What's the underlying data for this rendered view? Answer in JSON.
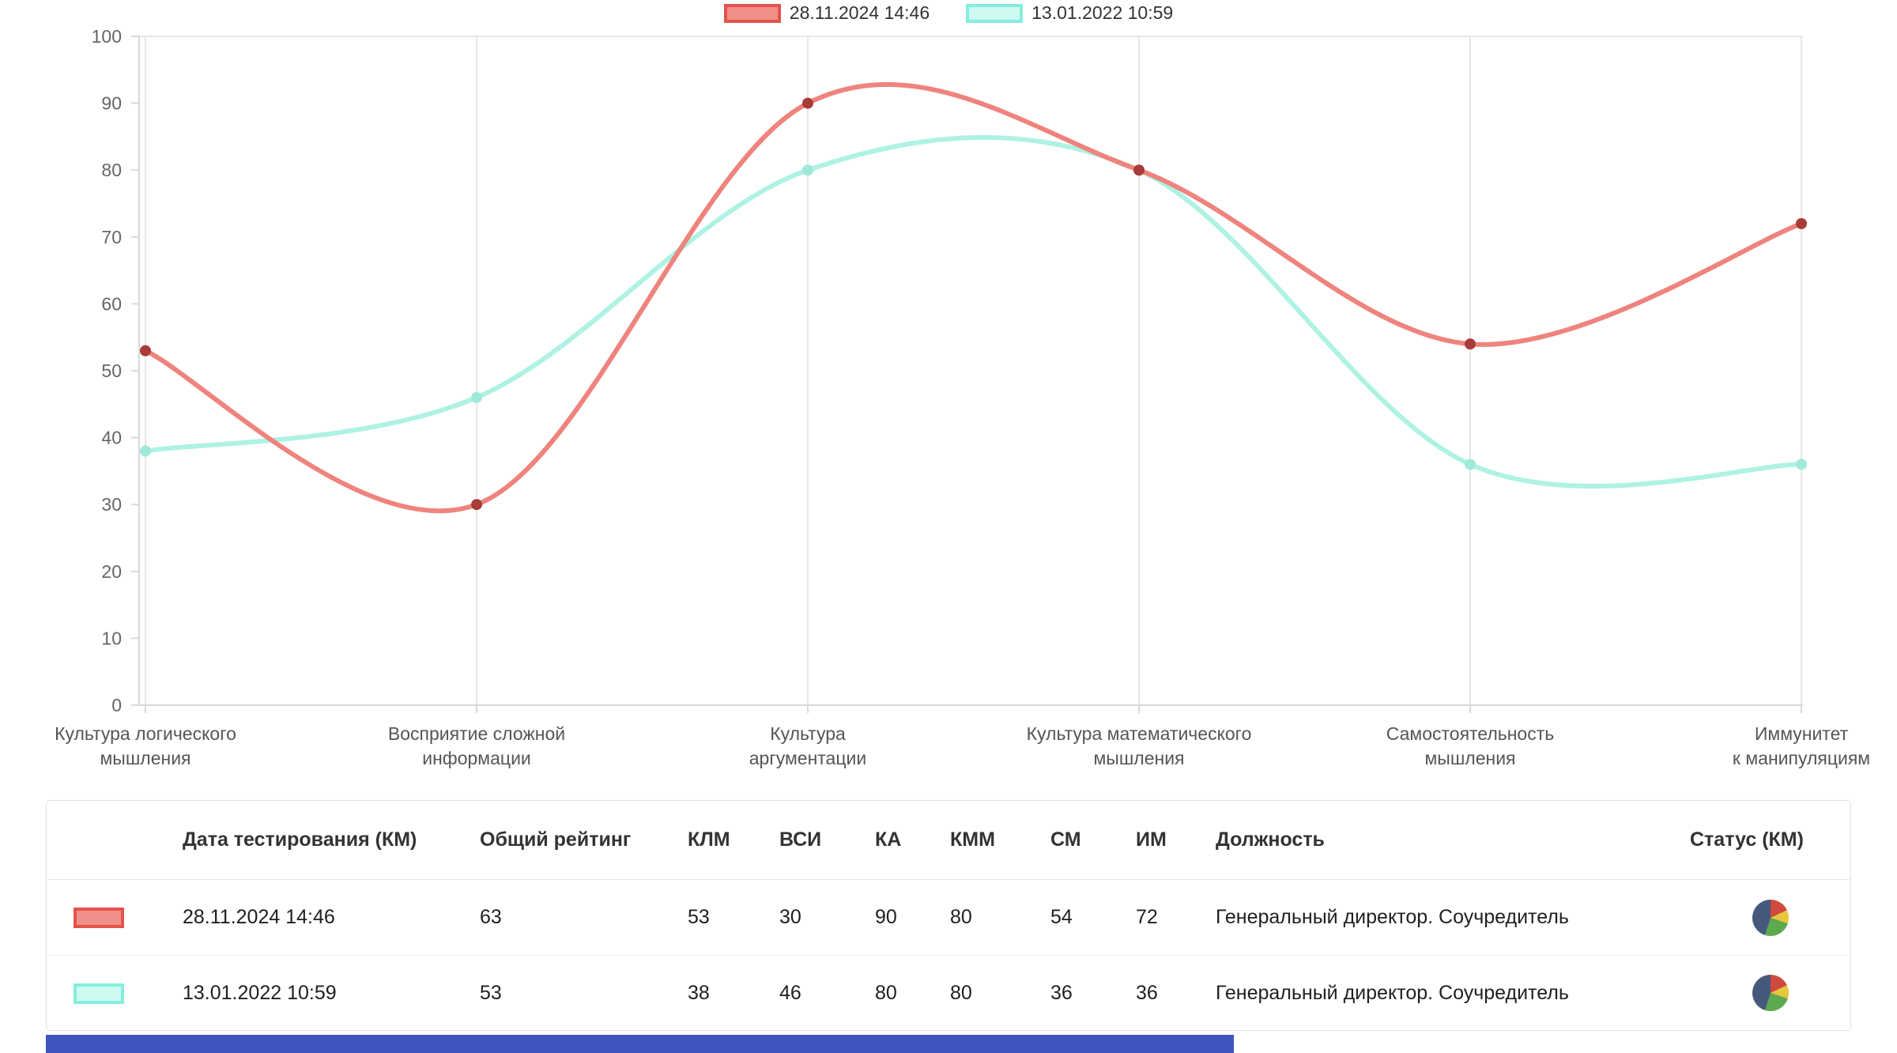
{
  "legend": {
    "items": [
      {
        "label": "28.11.2024 14:46",
        "fill": "#f19088",
        "border": "#e4534b"
      },
      {
        "label": "13.01.2022 10:59",
        "fill": "#cdfaf1",
        "border": "#85eede"
      }
    ]
  },
  "chart_data": {
    "type": "line",
    "title": "",
    "categories": [
      [
        "Культура логического",
        "мышления"
      ],
      [
        "Восприятие сложной",
        "информации"
      ],
      [
        "Культура",
        "аргументации"
      ],
      [
        "Культура математического",
        "мышления"
      ],
      [
        "Самостоятельность",
        "мышления"
      ],
      [
        "Иммунитет",
        "к манипуляциям"
      ]
    ],
    "series": [
      {
        "name": "28.11.2024 14:46",
        "values": [
          53,
          30,
          90,
          80,
          54,
          72
        ],
        "line_color": "#ef837d",
        "point_color": "#a83c38"
      },
      {
        "name": "13.01.2022 10:59",
        "values": [
          38,
          46,
          80,
          80,
          36,
          36
        ],
        "line_color": "#aef2e3",
        "point_color": "#9fe9da"
      }
    ],
    "ylim": [
      0,
      100
    ],
    "ytick_step": 10,
    "grid": "vertical-only",
    "legend_position": "top"
  },
  "table": {
    "headers": {
      "date": "Дата тестирования (КМ)",
      "rating": "Общий рейтинг",
      "klm": "КЛМ",
      "vsi": "ВСИ",
      "ka": "КА",
      "kmm": "КММ",
      "sm": "СМ",
      "im": "ИМ",
      "position": "Должность",
      "status": "Статус (КМ)"
    },
    "rows": [
      {
        "swatch": {
          "fill": "#f19088",
          "border": "#e4534b"
        },
        "date": "28.11.2024 14:46",
        "rating": "63",
        "klm": "53",
        "vsi": "30",
        "ka": "90",
        "kmm": "80",
        "sm": "54",
        "im": "72",
        "position": "Генеральный директор. Соучредитель"
      },
      {
        "swatch": {
          "fill": "#cdfaf1",
          "border": "#85eede"
        },
        "date": "13.01.2022 10:59",
        "rating": "53",
        "klm": "38",
        "vsi": "46",
        "ka": "80",
        "kmm": "80",
        "sm": "36",
        "im": "36",
        "position": "Генеральный директор. Соучредитель"
      }
    ]
  },
  "status_icon": {
    "segments": [
      {
        "color": "#cf4a3e",
        "frac": 0.18
      },
      {
        "color": "#e8c63f",
        "frac": 0.12
      },
      {
        "color": "#5da94e",
        "frac": 0.25
      },
      {
        "color": "#46597d",
        "frac": 0.45
      }
    ]
  },
  "bottom_bar": {
    "color": "#3e55c0"
  }
}
